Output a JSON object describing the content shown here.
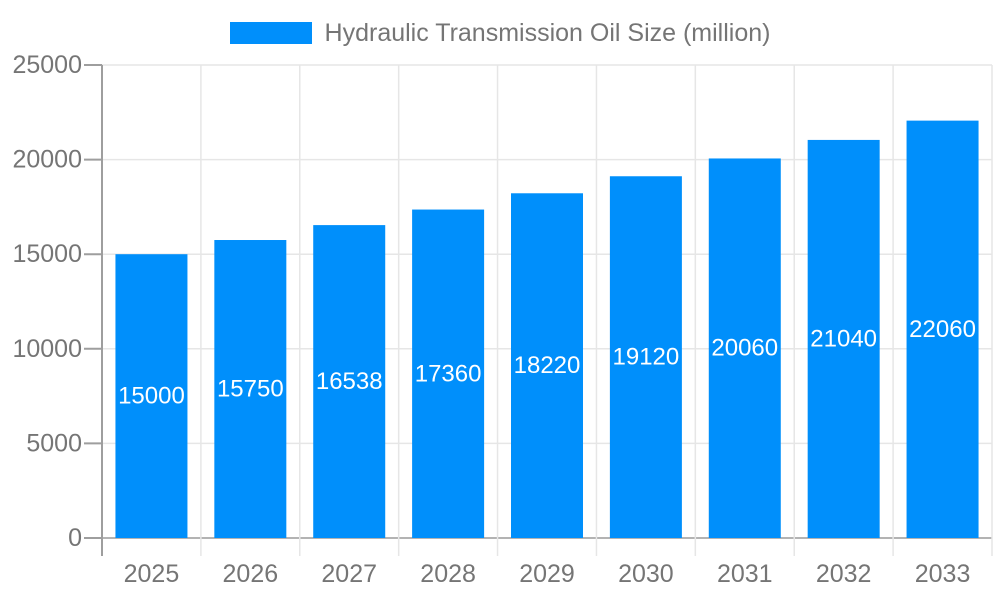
{
  "legend": {
    "label": "Hydraulic Transmission Oil Size (million)"
  },
  "chart_data": {
    "type": "bar",
    "title": "Hydraulic Transmission Oil Size (million)",
    "categories": [
      "2025",
      "2026",
      "2027",
      "2028",
      "2029",
      "2030",
      "2031",
      "2032",
      "2033"
    ],
    "series": [
      {
        "name": "Hydraulic Transmission Oil Size (million)",
        "values": [
          15000,
          15750,
          16538,
          17360,
          18220,
          19120,
          20060,
          21040,
          22060
        ]
      }
    ],
    "bar_labels": [
      "15000",
      "15750",
      "16538",
      "17360",
      "18220",
      "19120",
      "20060",
      "21040",
      "22060"
    ],
    "xlabel": "",
    "ylabel": "",
    "ylim": [
      0,
      25000
    ],
    "yticks": [
      0,
      5000,
      10000,
      15000,
      20000,
      25000
    ],
    "ytick_labels": [
      "0",
      "5000",
      "10000",
      "15000",
      "20000",
      "25000"
    ],
    "grid": true,
    "legend_position": "top",
    "colors": {
      "bar": "#008FFB",
      "bar_label_text": "#ffffff",
      "axis_text": "#757575",
      "grid_line": "#e6e6e6",
      "zero_line": "#b3b3b3",
      "axis_line": "#9e9e9e",
      "background": "#ffffff"
    }
  }
}
